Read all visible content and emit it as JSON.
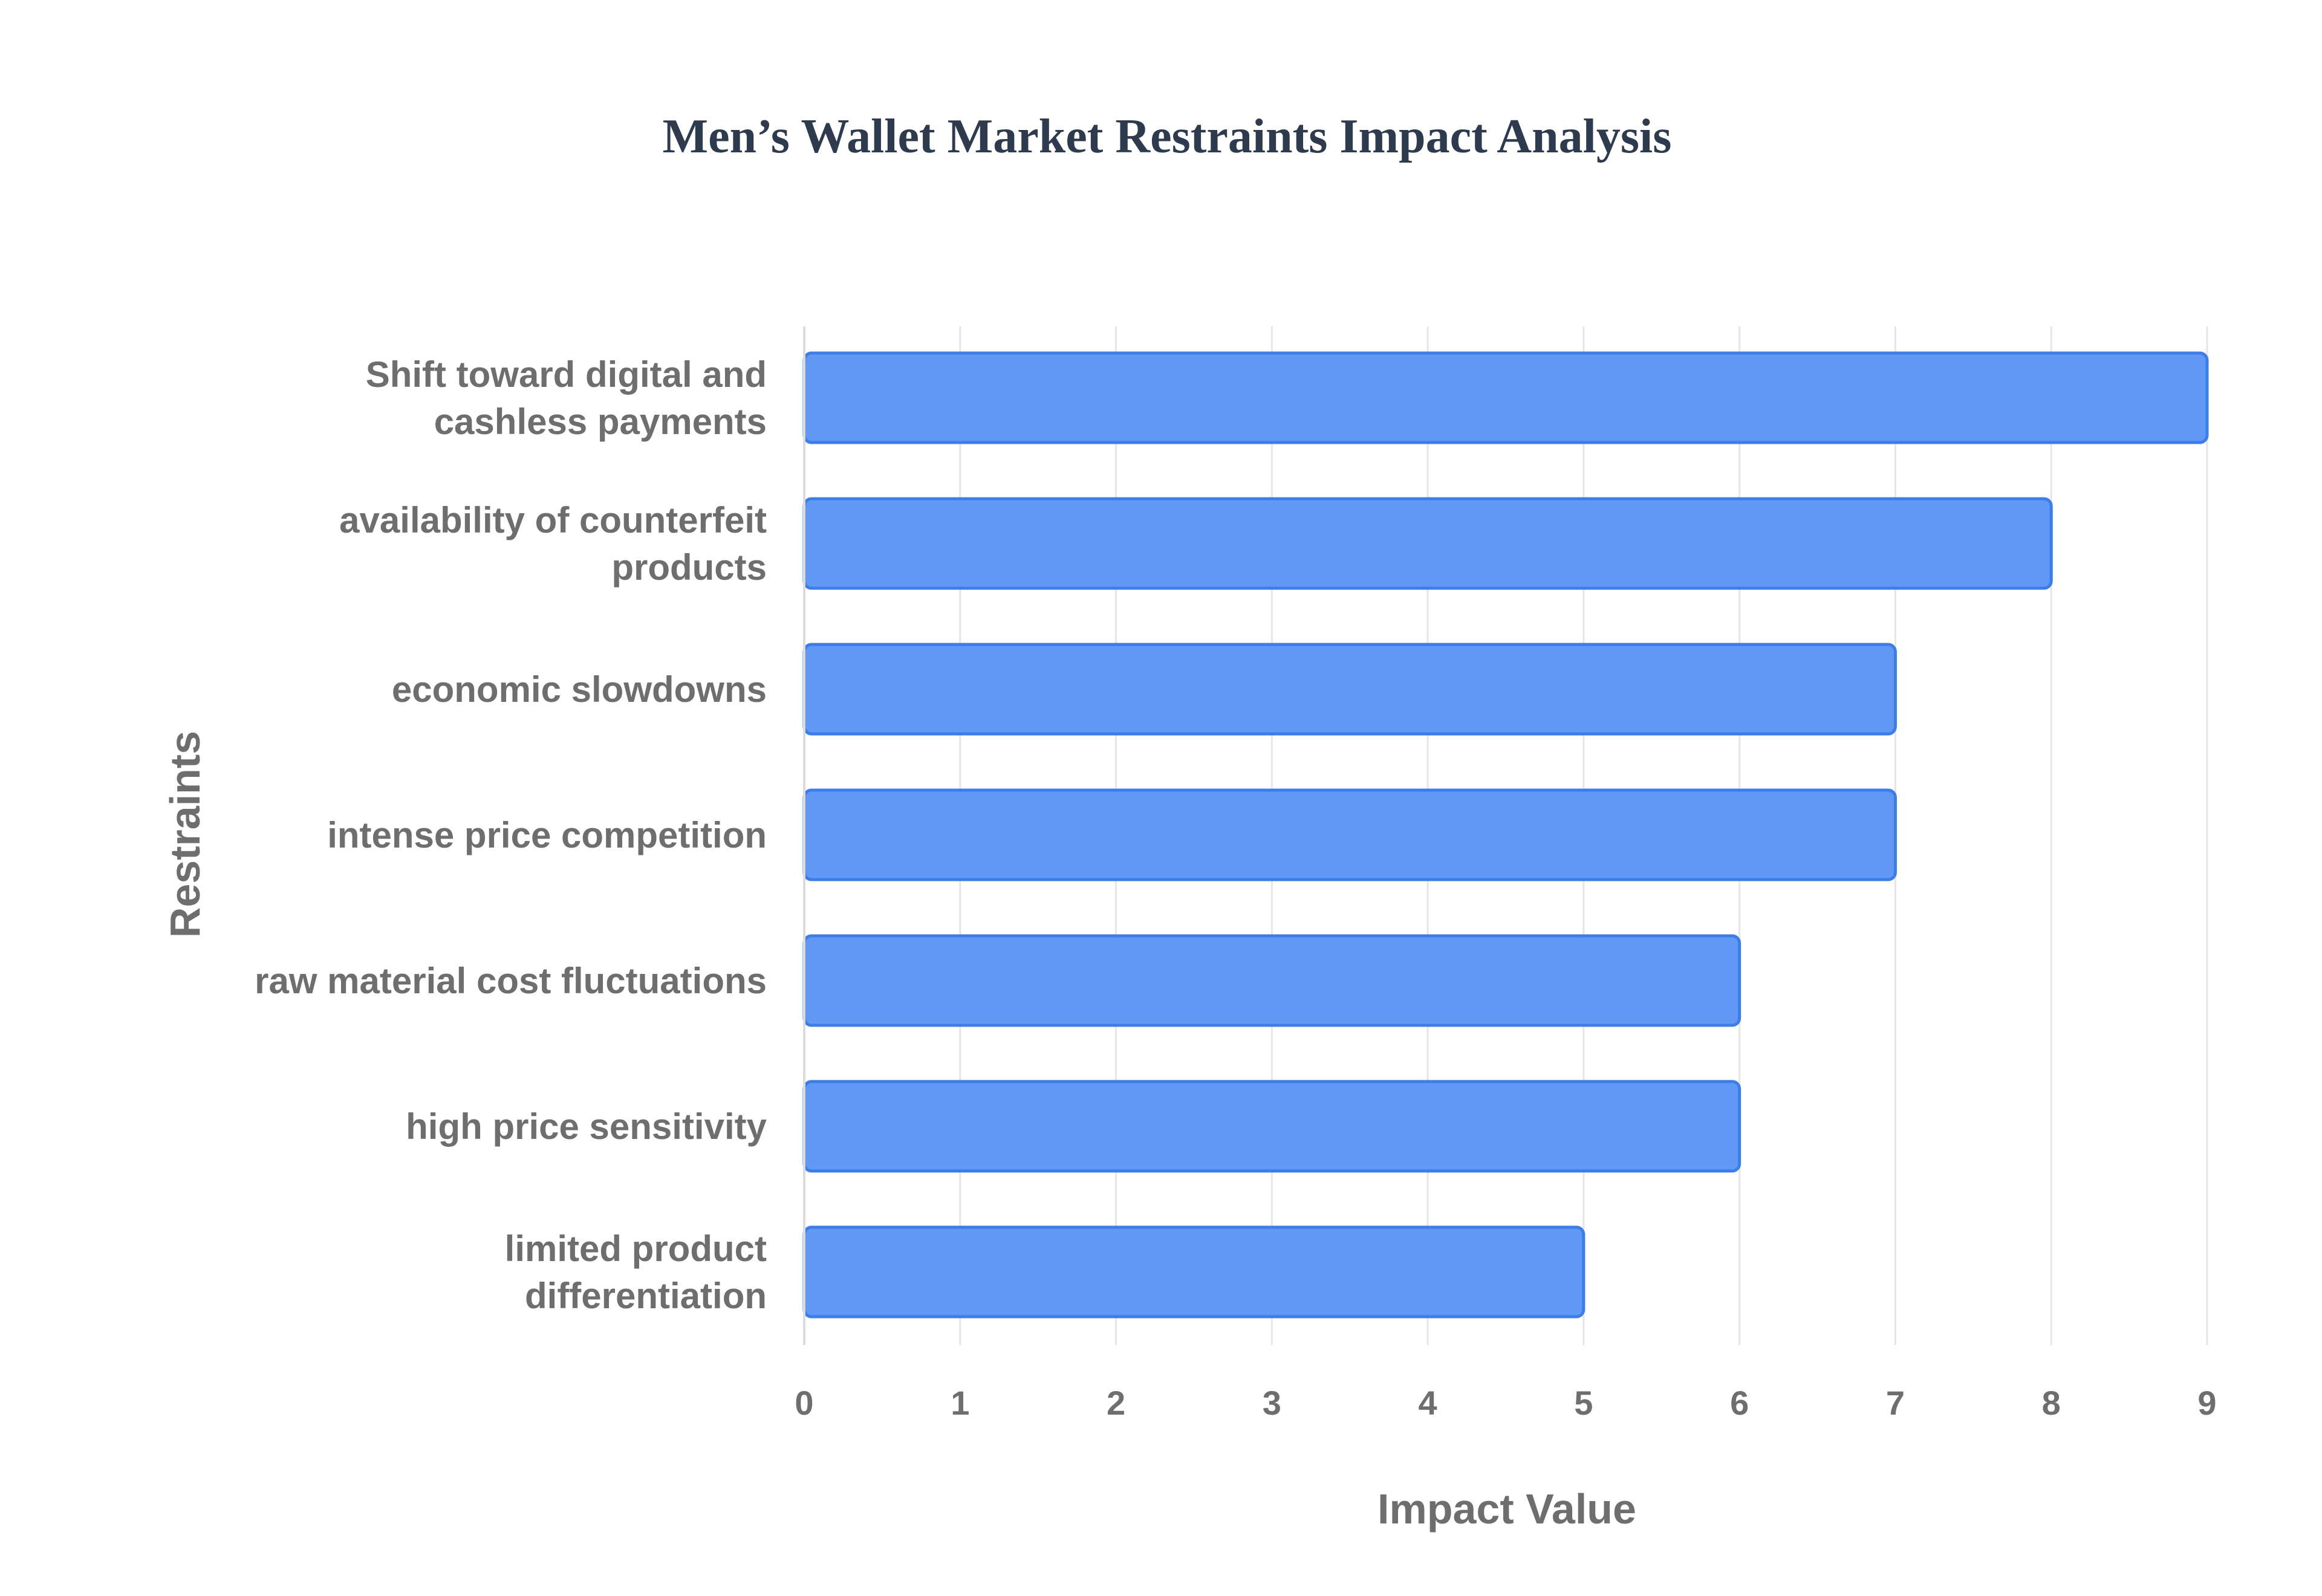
{
  "chart_data": {
    "type": "bar",
    "orientation": "horizontal",
    "title": "Men’s Wallet Market Restraints Impact Analysis",
    "xlabel": "Impact Value",
    "ylabel": "Restraints",
    "xlim": [
      0,
      9
    ],
    "xticks": [
      "0",
      "1",
      "2",
      "3",
      "4",
      "5",
      "6",
      "7",
      "8",
      "9"
    ],
    "grid": true,
    "legend": "none",
    "categories": [
      [
        "Shift toward digital and",
        "cashless payments"
      ],
      [
        "availability of counterfeit",
        "products"
      ],
      [
        "economic slowdowns"
      ],
      [
        "intense price competition"
      ],
      [
        "raw material cost fluctuations"
      ],
      [
        "high price sensitivity"
      ],
      [
        "limited product",
        "differentiation"
      ]
    ],
    "values": [
      9,
      8,
      7,
      7,
      6,
      6,
      5
    ],
    "colors": {
      "bar_fill": "#6198f5",
      "bar_stroke": "#3d7de8",
      "title": "#2e3b4e",
      "text": "#6e6e6e"
    }
  }
}
